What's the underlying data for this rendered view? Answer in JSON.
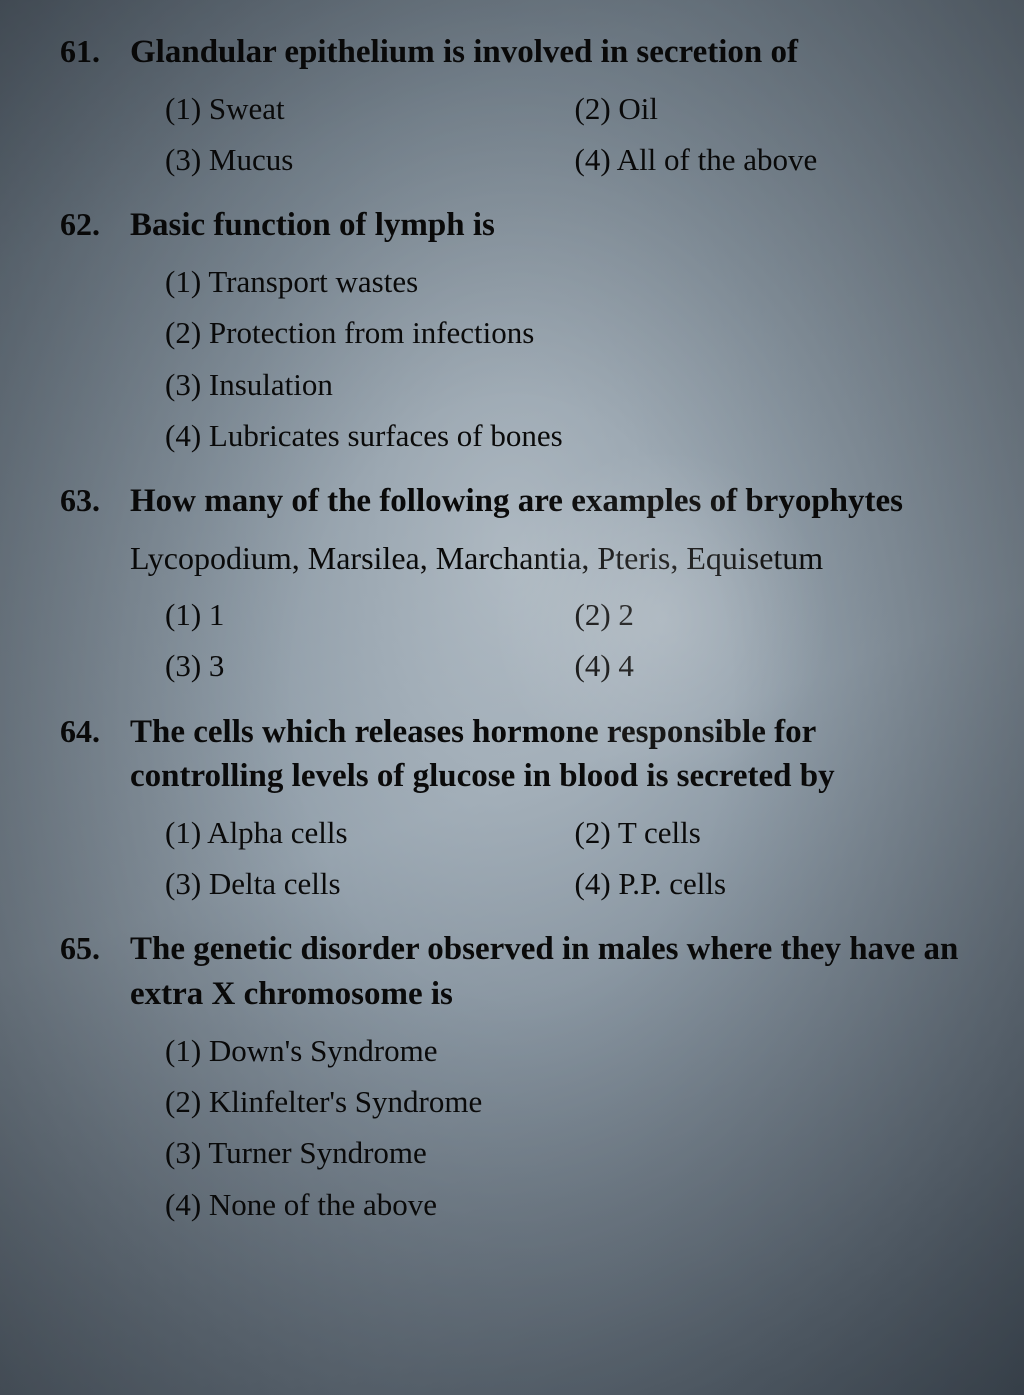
{
  "questions": [
    {
      "num": "61.",
      "text": "Glandular epithelium is involved in secretion of",
      "layout": "two-col",
      "options": [
        "(1) Sweat",
        "(2) Oil",
        "(3) Mucus",
        "(4) All of the above"
      ]
    },
    {
      "num": "62.",
      "text": "Basic function of lymph is",
      "layout": "one-col",
      "options": [
        "(1) Transport wastes",
        "(2) Protection from infections",
        "(3) Insulation",
        "(4) Lubricates surfaces of bones"
      ]
    },
    {
      "num": "63.",
      "text": "How many of the following are examples of bryophytes",
      "subtext": "Lycopodium, Marsilea, Marchantia, Pteris, Equisetum",
      "layout": "two-col",
      "options": [
        "(1) 1",
        "(2) 2",
        "(3) 3",
        "(4) 4"
      ]
    },
    {
      "num": "64.",
      "text": "The cells which releases hormone responsible for controlling levels of glucose in blood is secreted by",
      "layout": "two-col",
      "options": [
        "(1) Alpha cells",
        "(2) T cells",
        "(3) Delta cells",
        "(4) P.P. cells"
      ]
    },
    {
      "num": "65.",
      "text": "The genetic disorder observed in males where they have an extra X chromosome is",
      "layout": "one-col",
      "options": [
        "(1) Down's Syndrome",
        "(2) Klinfelter's Syndrome",
        "(3) Turner Syndrome",
        "(4) None of the above"
      ]
    }
  ]
}
